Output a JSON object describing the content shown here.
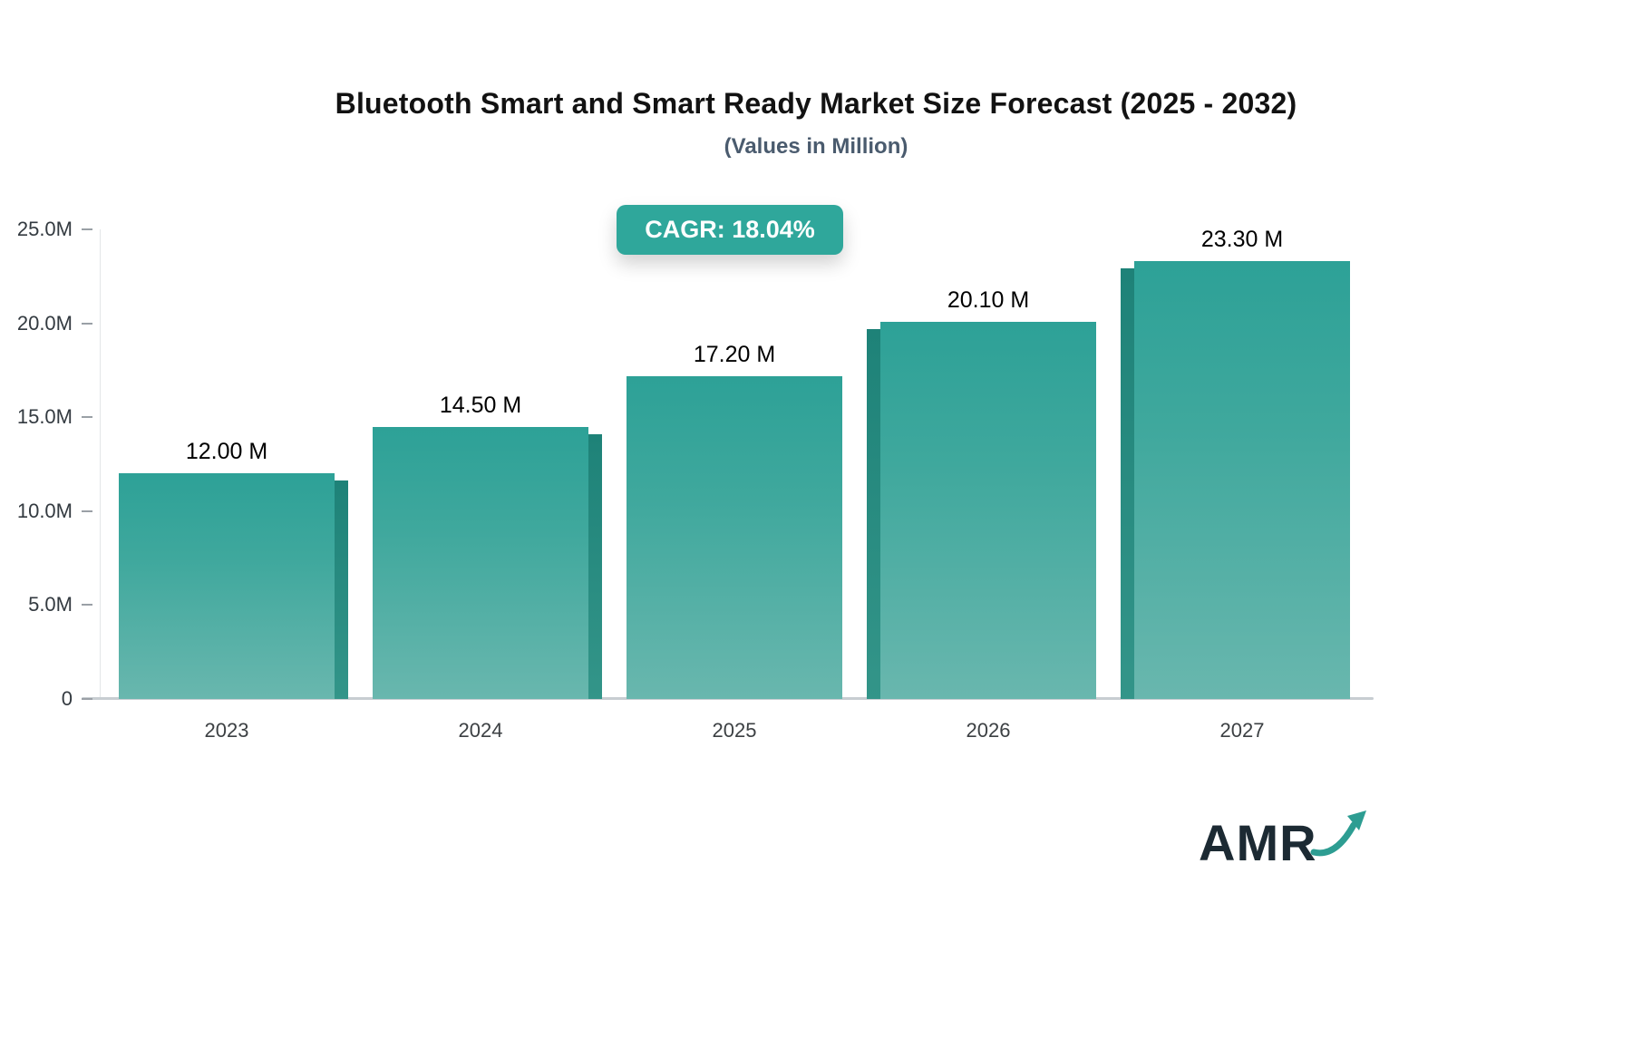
{
  "header": {
    "title": "Bluetooth Smart and Smart Ready Market Size Forecast (2025 - 2032)",
    "subtitle": "(Values in Million)"
  },
  "cagr_badge": {
    "label": "CAGR: 18.04%",
    "bg": "#2fa79b",
    "text_color": "#ffffff"
  },
  "chart_data": {
    "type": "bar",
    "categories": [
      "2023",
      "2024",
      "2025",
      "2026",
      "2027"
    ],
    "values": [
      12.0,
      14.5,
      17.2,
      20.1,
      23.3
    ],
    "value_labels": [
      "12.00 M",
      "14.50 M",
      "17.20 M",
      "20.10 M",
      "23.30 M"
    ],
    "title": "Bluetooth Smart and Smart Ready Market Size Forecast (2025 - 2032)",
    "subtitle": "(Values in Million)",
    "xlabel": "",
    "ylabel": "",
    "ylim": [
      0,
      25
    ],
    "yticks": [
      0,
      5,
      10,
      15,
      20,
      25
    ],
    "ytick_labels": [
      "0",
      "5.0M",
      "10.0M",
      "15.0M",
      "20.0M",
      "25.0M"
    ],
    "grid": false,
    "legend": false,
    "bar_color_top": "#2da197",
    "bar_color_mid": "#3fa89d",
    "bar_color_bottom": "#69b7ae",
    "bar_side_color_top": "#1e8278",
    "bar_side_color_bottom": "#339density"
  },
  "logo": {
    "text": "AMR",
    "arrow_color": "#2d9d92"
  }
}
